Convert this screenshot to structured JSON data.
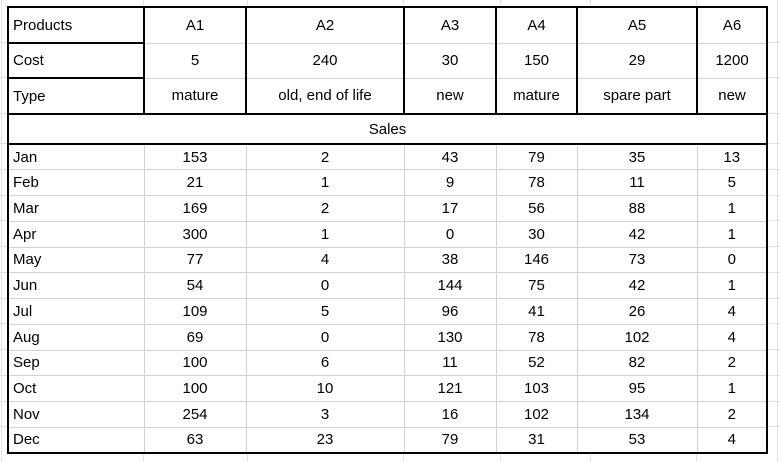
{
  "colors": {
    "background": "#ffffff",
    "text": "#000000",
    "table_border": "#000000",
    "cell_gridline": "#d0d0d0",
    "sheet_gridline": "#e2e2e2"
  },
  "table": {
    "header_rows": [
      {
        "label": "Products",
        "values": [
          "A1",
          "A2",
          "A3",
          "A4",
          "A5",
          "A6"
        ]
      },
      {
        "label": "Cost",
        "values": [
          "5",
          "240",
          "30",
          "150",
          "29",
          "1200"
        ]
      },
      {
        "label": "Type",
        "values": [
          "mature",
          "old, end of life",
          "new",
          "mature",
          "spare part",
          "new"
        ]
      }
    ],
    "section_title": "Sales",
    "sales": [
      {
        "month": "Jan",
        "values": [
          "153",
          "2",
          "43",
          "79",
          "35",
          "13"
        ]
      },
      {
        "month": "Feb",
        "values": [
          "21",
          "1",
          "9",
          "78",
          "11",
          "5"
        ]
      },
      {
        "month": "Mar",
        "values": [
          "169",
          "2",
          "17",
          "56",
          "88",
          "1"
        ]
      },
      {
        "month": "Apr",
        "values": [
          "300",
          "1",
          "0",
          "30",
          "42",
          "1"
        ]
      },
      {
        "month": "May",
        "values": [
          "77",
          "4",
          "38",
          "146",
          "73",
          "0"
        ]
      },
      {
        "month": "Jun",
        "values": [
          "54",
          "0",
          "144",
          "75",
          "42",
          "1"
        ]
      },
      {
        "month": "Jul",
        "values": [
          "109",
          "5",
          "96",
          "41",
          "26",
          "4"
        ]
      },
      {
        "month": "Aug",
        "values": [
          "69",
          "0",
          "130",
          "78",
          "102",
          "4"
        ]
      },
      {
        "month": "Sep",
        "values": [
          "100",
          "6",
          "11",
          "52",
          "82",
          "2"
        ]
      },
      {
        "month": "Oct",
        "values": [
          "100",
          "10",
          "121",
          "103",
          "95",
          "1"
        ]
      },
      {
        "month": "Nov",
        "values": [
          "254",
          "3",
          "16",
          "102",
          "134",
          "2"
        ]
      },
      {
        "month": "Dec",
        "values": [
          "63",
          "23",
          "79",
          "31",
          "53",
          "4"
        ]
      }
    ]
  }
}
